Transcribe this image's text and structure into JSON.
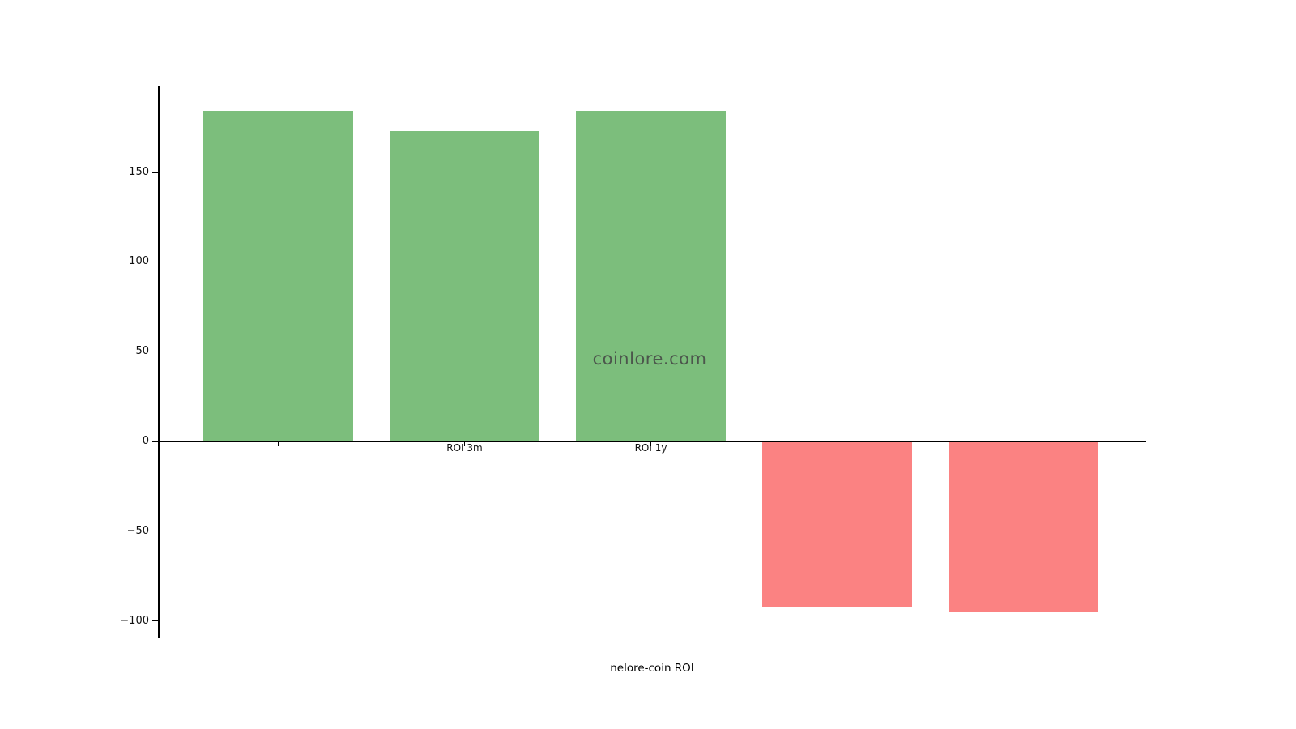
{
  "chart_data": {
    "type": "bar",
    "title": "nelore-coin ROI",
    "categories": [
      "",
      "ROI 3m",
      "ROI 1y",
      "",
      ""
    ],
    "values": [
      184,
      173,
      184,
      -92,
      -95
    ],
    "yticks": [
      150,
      100,
      50,
      0,
      -50,
      -100
    ],
    "ytick_labels": [
      "150",
      "100",
      "50",
      "0",
      "−50",
      "−100"
    ],
    "ylim": [
      -110,
      198
    ],
    "xlabel": "",
    "ylabel": "",
    "grid": false,
    "legend": false,
    "colors": {
      "positive_bar": "#7CBE7C",
      "negative_bar": "#FB8282",
      "axis": "#000000",
      "tick_label": "#111111"
    }
  },
  "watermark": {
    "text": "coinlore.com",
    "color": "#444444"
  }
}
